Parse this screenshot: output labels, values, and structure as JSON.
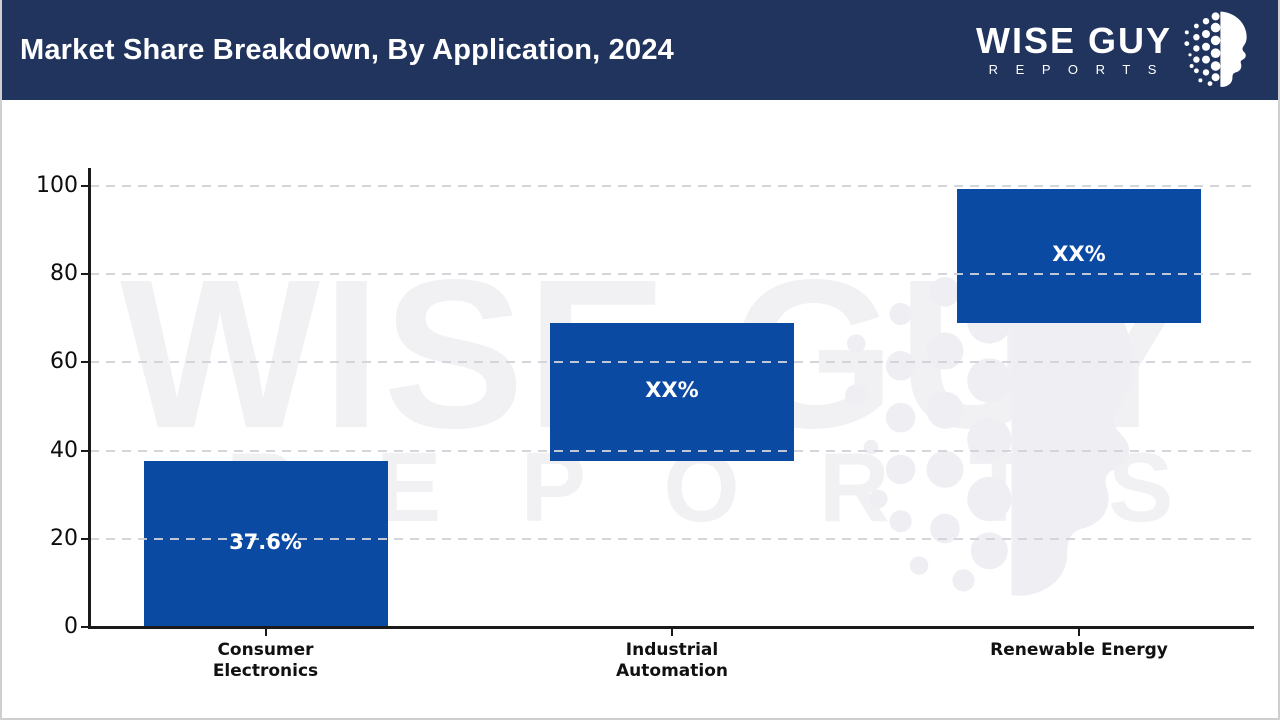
{
  "header": {
    "title": "Market Share Breakdown, By Application, 2024",
    "bg_color": "#20345E",
    "logo": {
      "brand": "WISE GUY",
      "sub": "R E P O R T S"
    }
  },
  "watermark": {
    "line1": "WISE GUY",
    "line2": "R E P O R T S"
  },
  "chart_data": {
    "type": "bar",
    "variant": "floating-segment-bars-waterfall-style",
    "title": "Market Share Breakdown, By Application, 2024",
    "categories": [
      "Consumer Electronics",
      "Industrial Automation",
      "Renewable Energy"
    ],
    "category_label_lines": [
      [
        "Consumer",
        "Electronics"
      ],
      [
        "Industrial",
        "Automation"
      ],
      [
        "Renewable Energy"
      ]
    ],
    "bars": [
      {
        "category": "Consumer Electronics",
        "start": 0,
        "end": 37.6,
        "label": "37.6%"
      },
      {
        "category": "Industrial Automation",
        "start": 37.6,
        "end": 69.0,
        "label": "XX%"
      },
      {
        "category": "Renewable Energy",
        "start": 69.0,
        "end": 99.4,
        "label": "XX%"
      }
    ],
    "yticks": [
      0,
      20,
      40,
      60,
      80,
      100
    ],
    "ylim": [
      0,
      104
    ],
    "xlabel": "",
    "ylabel": "",
    "grid": "horizontal-dashed",
    "legend": "none",
    "bar_color": "#0B4AA2",
    "bar_label_color": "#ffffff",
    "axis_color": "#1a1a1a",
    "gridline_color": "#d4d7dc"
  }
}
